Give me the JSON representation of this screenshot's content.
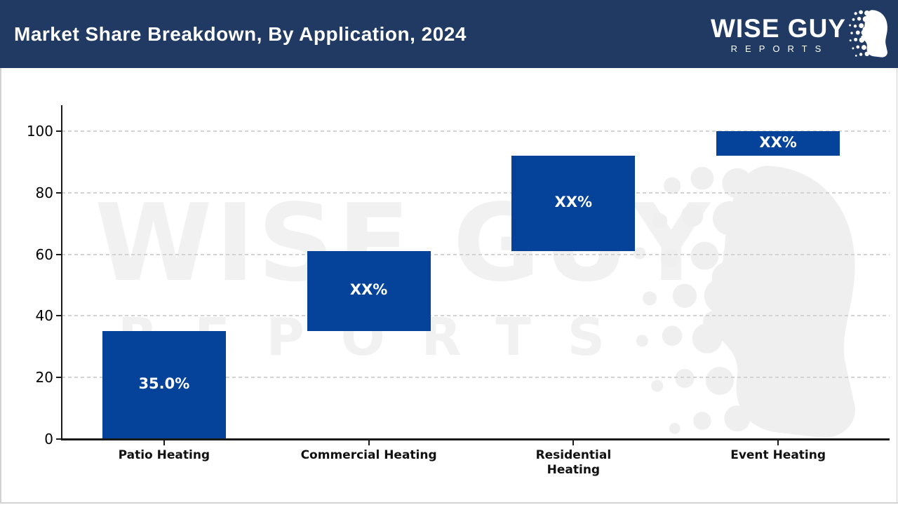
{
  "header": {
    "title": "Market Share Breakdown, By Application, 2024",
    "logo": {
      "line1": "WISE GUY",
      "line2": "REPORTS"
    }
  },
  "watermark": {
    "line1": "WISE GUY",
    "line2": "REPORTS"
  },
  "chart_data": {
    "type": "bar",
    "subtype": "floating-waterfall",
    "title": "Market Share Breakdown, By Application, 2024",
    "categories": [
      "Patio Heating",
      "Commercial Heating",
      "Residential\nHeating",
      "Event Heating"
    ],
    "bars": [
      {
        "category": "Patio Heating",
        "start": 0,
        "end": 35,
        "label": "35.0%"
      },
      {
        "category": "Commercial Heating",
        "start": 35,
        "end": 61,
        "label": "XX%"
      },
      {
        "category": "Residential\nHeating",
        "start": 61,
        "end": 92,
        "label": "XX%"
      },
      {
        "category": "Event Heating",
        "start": 92,
        "end": 100,
        "label": "XX%"
      }
    ],
    "yticks": [
      0,
      20,
      40,
      60,
      80,
      100
    ],
    "ylim": [
      0,
      108
    ],
    "xlabel": "",
    "ylabel": "",
    "legend": "none",
    "grid": {
      "axis": "y",
      "style": "dashed",
      "color": "#d3d3d3"
    },
    "colors": {
      "bar": "#05439b",
      "bar_label": "#ffffff",
      "header_bg": "#203a64",
      "header_text": "#ffffff",
      "axis": "#1a1a1a",
      "watermark": "#f1f1f1"
    }
  }
}
